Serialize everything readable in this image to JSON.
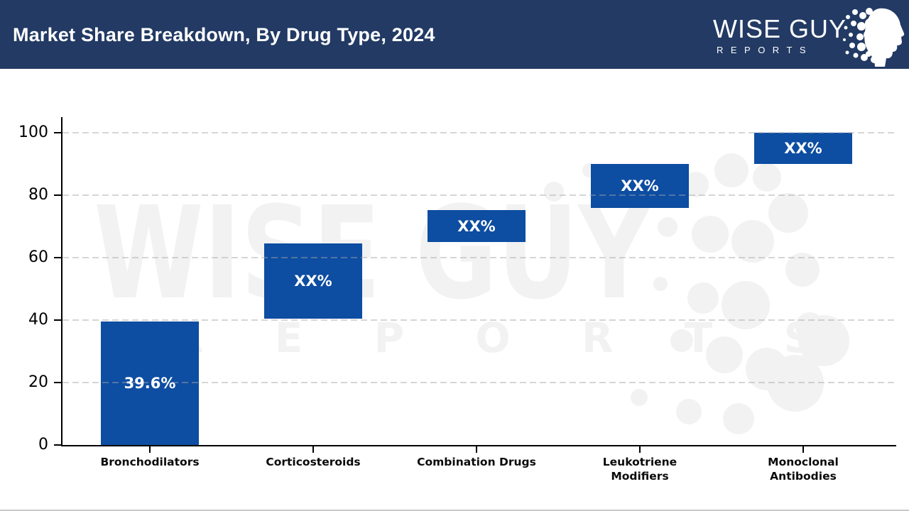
{
  "header": {
    "title": "Market Share Breakdown, By Drug Type, 2024",
    "logo_line1": "WISE GUY",
    "logo_line2": "REPORTS",
    "bg_color": "#223a64"
  },
  "watermark": {
    "big_text": "WISE GUY",
    "small_text": "R E P O R T S"
  },
  "chart_data": {
    "type": "bar",
    "subtype": "waterfall",
    "title": "Market Share Breakdown, By Drug Type, 2024",
    "categories": [
      "Bronchodilators",
      "Corticosteroids",
      "Combination Drugs",
      "Leukotriene Modifiers",
      "Monoclonal Antibodies"
    ],
    "bars": [
      {
        "category": "Bronchodilators",
        "category_lines": [
          "Bronchodilators"
        ],
        "start": 0,
        "end": 39.6,
        "label": "39.6%"
      },
      {
        "category": "Corticosteroids",
        "category_lines": [
          "Corticosteroids"
        ],
        "start": 40.5,
        "end": 64.5,
        "label": "XX%"
      },
      {
        "category": "Combination Drugs",
        "category_lines": [
          "Combination Drugs"
        ],
        "start": 65,
        "end": 75.2,
        "label": "XX%"
      },
      {
        "category": "Leukotriene Modifiers",
        "category_lines": [
          "Leukotriene",
          "Modifiers"
        ],
        "start": 76,
        "end": 90,
        "label": "XX%"
      },
      {
        "category": "Monoclonal Antibodies",
        "category_lines": [
          "Monoclonal",
          "Antibodies"
        ],
        "start": 90,
        "end": 100,
        "label": "XX%"
      }
    ],
    "y_ticks": [
      0,
      20,
      40,
      60,
      80,
      100
    ],
    "ylim": [
      0,
      105
    ],
    "bar_color": "#0d4da2",
    "value_label_color": "#ffffff",
    "axis_color": "#000000",
    "grid": "horizontal-dashed",
    "legend": "none"
  }
}
